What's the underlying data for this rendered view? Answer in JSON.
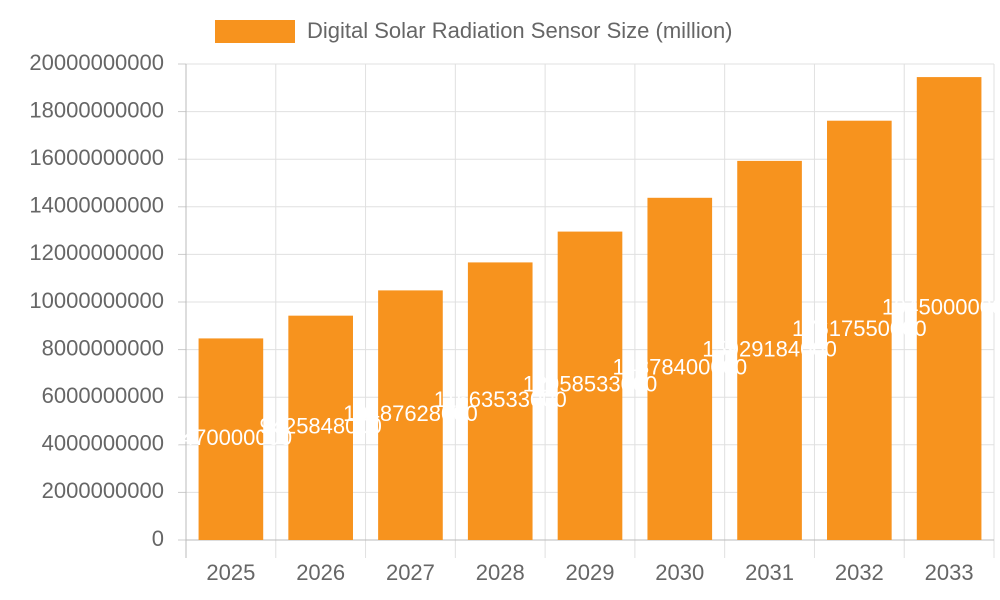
{
  "chart_data": {
    "type": "bar",
    "series": [
      {
        "name": "Digital Solar Radiation Sensor Size (million)",
        "color": "#f7931e",
        "values": [
          8470000000,
          9425848000,
          10487628000,
          11663533000,
          12958533000,
          14378400000,
          15929184000,
          17617550000,
          19450000000
        ]
      }
    ],
    "categories": [
      "2025",
      "2026",
      "2027",
      "2028",
      "2029",
      "2030",
      "2031",
      "2032",
      "2033"
    ],
    "ylim": [
      0,
      20000000000
    ],
    "yticks": [
      0,
      2000000000,
      4000000000,
      6000000000,
      8000000000,
      10000000000,
      12000000000,
      14000000000,
      16000000000,
      18000000000,
      20000000000
    ],
    "grid": true,
    "legend": "top"
  }
}
